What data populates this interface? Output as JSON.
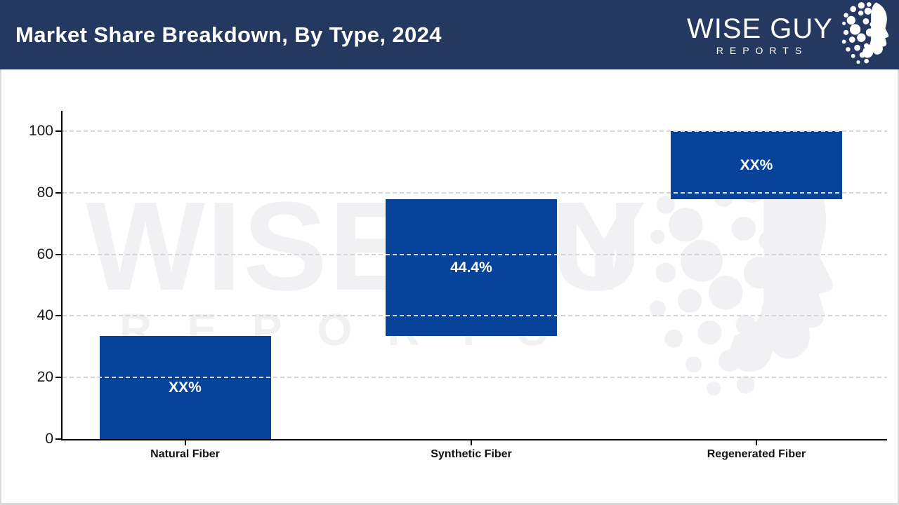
{
  "header": {
    "title": "Market Share Breakdown, By Type, 2024",
    "brand": {
      "name": "WISE GUY",
      "tagline": "REPORTS"
    }
  },
  "watermark": {
    "brand_left": "WISE GU",
    "brand_right": "Y",
    "tagline": "REPORTS"
  },
  "colors": {
    "header_bg": "#253860",
    "bar": "#08439b",
    "bar_label": "#ffffff",
    "grid": "#d6d6d6",
    "tick_label": "#1a1a1a",
    "watermark": "#f1f1f4",
    "frame": "#d9d9d9"
  },
  "chart_data": {
    "type": "bar",
    "subtype": "waterfall",
    "title": "Market Share Breakdown, By Type, 2024",
    "categories": [
      "Natural Fiber",
      "Synthetic Fiber",
      "Regenerated Fiber"
    ],
    "segments": [
      {
        "category": "Natural Fiber",
        "start": 0,
        "end": 33.4,
        "value": 33.4,
        "label": "XX%"
      },
      {
        "category": "Synthetic Fiber",
        "start": 33.4,
        "end": 77.8,
        "value": 44.4,
        "label": "44.4%"
      },
      {
        "category": "Regenerated Fiber",
        "start": 77.8,
        "end": 100,
        "value": 22.2,
        "label": "XX%"
      }
    ],
    "ylim": [
      0,
      100
    ],
    "yticks": [
      0,
      20,
      40,
      60,
      80,
      100
    ],
    "grid": "horizontal-dashed",
    "legend": "none"
  }
}
